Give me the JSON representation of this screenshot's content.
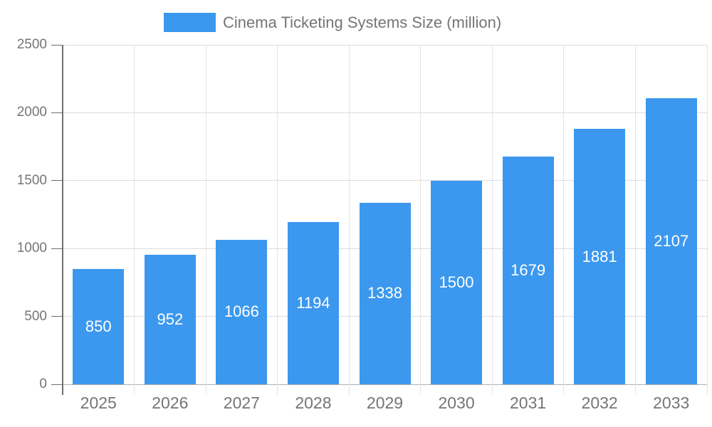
{
  "legend": {
    "label": "Cinema Ticketing Systems Size (million)"
  },
  "colors": {
    "bar": "#3B98EE",
    "grid_horizontal": "#DDDDDD",
    "grid_vertical": "#E4E4E4",
    "baseline": "#B0B0B0",
    "axis_line": "#6F6F6F",
    "tick_label": "#757575",
    "value_label": "#FFFFFF",
    "background": "#FFFFFF"
  },
  "chart_data": {
    "type": "bar",
    "title": "Cinema Ticketing Systems Size (million)",
    "categories": [
      "2025",
      "2026",
      "2027",
      "2028",
      "2029",
      "2030",
      "2031",
      "2032",
      "2033"
    ],
    "values": [
      850,
      952,
      1066,
      1194,
      1338,
      1500,
      1679,
      1881,
      2107
    ],
    "xlabel": "",
    "ylabel": "",
    "ylim": [
      0,
      2500
    ],
    "y_ticks": [
      0,
      500,
      1000,
      1500,
      2000,
      2500
    ],
    "grid": true,
    "legend_position": "top",
    "value_label_position": "inside-center"
  }
}
